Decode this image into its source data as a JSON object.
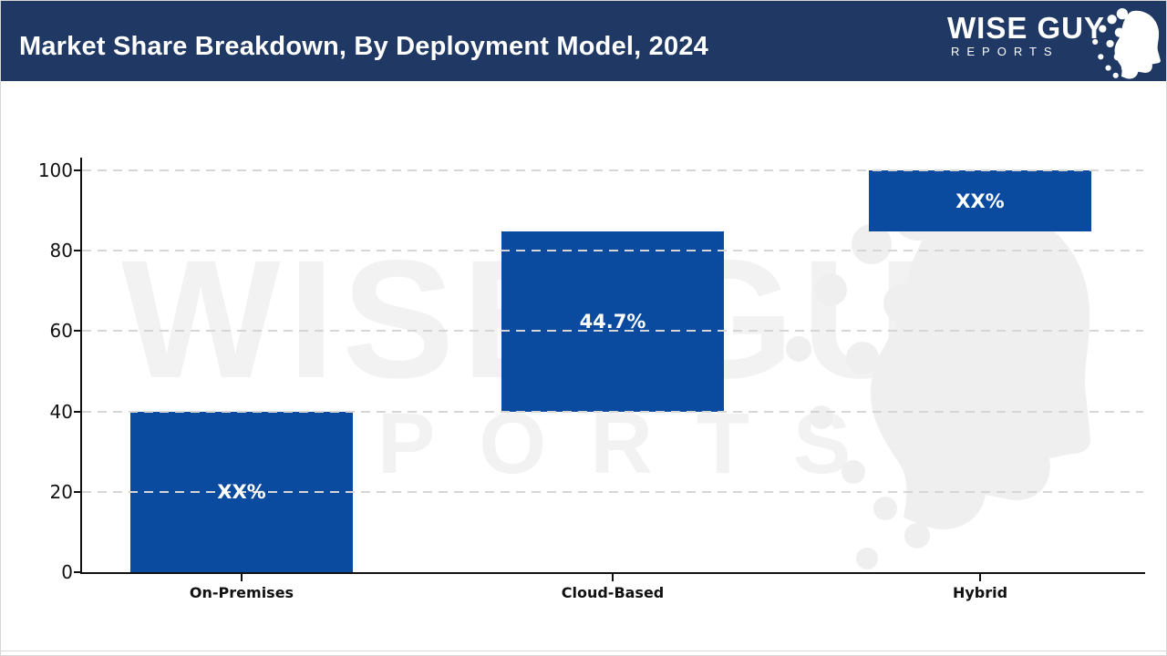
{
  "header": {
    "title": "Market Share Breakdown, By Deployment Model, 2024",
    "logo_line1": "WISE GUY",
    "logo_line2": "REPORTS"
  },
  "watermark": {
    "line1": "WISE GUY",
    "line2": "REPORTS"
  },
  "chart_data": {
    "type": "bar",
    "subtype": "waterfall",
    "title": "Market Share Breakdown, By Deployment Model, 2024",
    "categories": [
      "On-Premises",
      "Cloud-Based",
      "Hybrid"
    ],
    "segments": [
      {
        "category": "On-Premises",
        "start": 0,
        "end": 40,
        "label": "XX%"
      },
      {
        "category": "Cloud-Based",
        "start": 40,
        "end": 84.7,
        "label": "44.7%"
      },
      {
        "category": "Hybrid",
        "start": 84.7,
        "end": 100,
        "label": "XX%"
      }
    ],
    "yticks": [
      0,
      20,
      40,
      60,
      80,
      100
    ],
    "ylim": [
      0,
      103
    ],
    "xlabel": "",
    "ylabel": "",
    "grid": "horizontal-dashed",
    "legend": "none",
    "bar_color": "#0a4ba0",
    "bar_label_color": "#ffffff"
  },
  "colors": {
    "header_bg": "#1f3864",
    "bar": "#0a4ba0",
    "grid": "#d6d6d6",
    "watermark": "#f0f0f0",
    "axis": "#111111"
  }
}
